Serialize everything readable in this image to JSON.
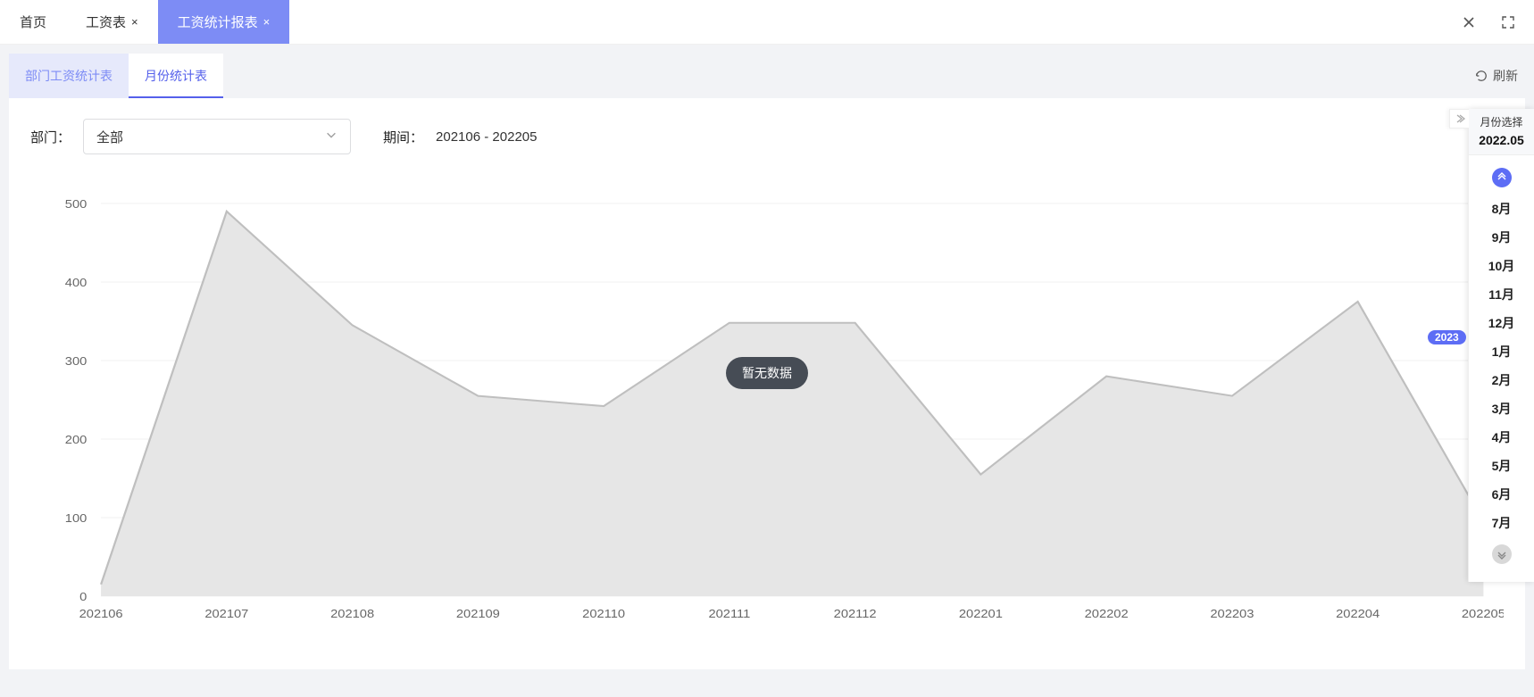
{
  "top_tabs": [
    {
      "label": "首页",
      "closable": false,
      "active": false
    },
    {
      "label": "工资表",
      "closable": true,
      "active": false
    },
    {
      "label": "工资统计报表",
      "closable": true,
      "active": true
    }
  ],
  "sub_tabs": [
    {
      "label": "部门工资统计表",
      "active": false
    },
    {
      "label": "月份统计表",
      "active": true
    }
  ],
  "refresh_label": "刷新",
  "filters": {
    "dept_label": "部门：",
    "dept_value": "全部",
    "period_label": "期间：",
    "period_value": "202106 - 202205"
  },
  "chart": {
    "type": "area",
    "tooltip_text": "暂无数据",
    "categories": [
      "202106",
      "202107",
      "202108",
      "202109",
      "202110",
      "202111",
      "202112",
      "202201",
      "202202",
      "202203",
      "202204",
      "202205"
    ],
    "values": [
      15,
      490,
      345,
      255,
      242,
      348,
      348,
      155,
      280,
      255,
      375,
      95
    ],
    "ylim": [
      0,
      500
    ],
    "ytick_step": 100,
    "y_ticks": [
      0,
      100,
      200,
      300,
      400,
      500
    ],
    "line_color": "#bfbfbf",
    "fill_color": "#e6e6e6",
    "axis_text_color": "#666666",
    "split_line_color": "#f0f0f0",
    "background_color": "#ffffff",
    "axis_font_size": 13,
    "line_width": 2
  },
  "month_picker": {
    "title": "月份选择",
    "current": "2022.05",
    "year_badge": "2023",
    "items": [
      "8月",
      "9月",
      "10月",
      "11月",
      "12月",
      "1月",
      "2月",
      "3月",
      "4月",
      "5月",
      "6月",
      "7月"
    ]
  },
  "colors": {
    "active_top_tab_bg": "#7d8cf5",
    "active_sub_tab_indicator": "#5560eb",
    "badge_bg": "#5d6df5",
    "scroll_up_bg": "#5d6df5",
    "scroll_down_bg": "#d8d8d8"
  }
}
